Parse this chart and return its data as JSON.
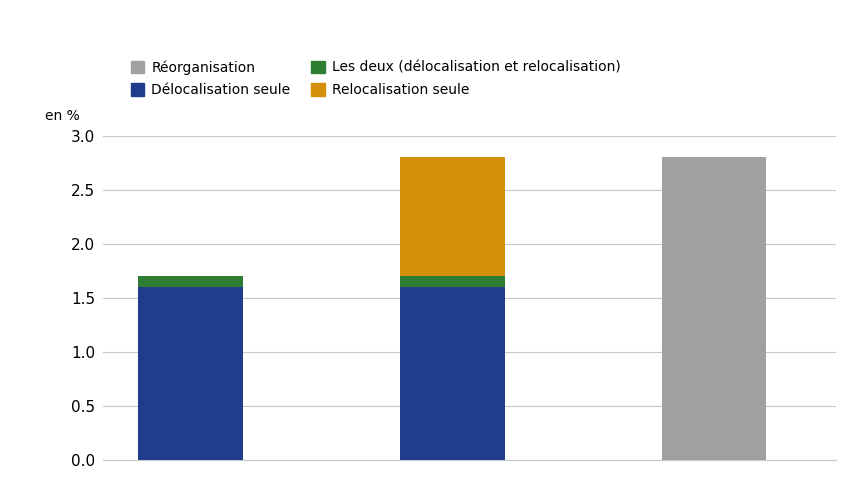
{
  "x_positions": [
    0.5,
    2.0,
    3.5
  ],
  "bar_width": 0.6,
  "segments": {
    "reorganisation": [
      0.0,
      0.0,
      2.8
    ],
    "delocalisation_seule": [
      1.6,
      1.6,
      0.0
    ],
    "les_deux": [
      0.1,
      0.1,
      0.0
    ],
    "relocalisation_seule": [
      0.0,
      1.1,
      0.0
    ]
  },
  "colors": {
    "reorganisation": "#a0a0a0",
    "delocalisation_seule": "#1f3d8c",
    "les_deux": "#2e7d32",
    "relocalisation_seule": "#d4900a"
  },
  "legend_labels": {
    "reorganisation": "Réorganisation",
    "delocalisation_seule": "Délocalisation seule",
    "les_deux": "Les deux (délocalisation et relocalisation)",
    "relocalisation_seule": "Relocalisation seule"
  },
  "ylabel": "en %",
  "ylim": [
    0.0,
    3.0
  ],
  "yticks": [
    0.0,
    0.5,
    1.0,
    1.5,
    2.0,
    2.5,
    3.0
  ],
  "background_color": "#ffffff",
  "grid_color": "#c8c8c8"
}
